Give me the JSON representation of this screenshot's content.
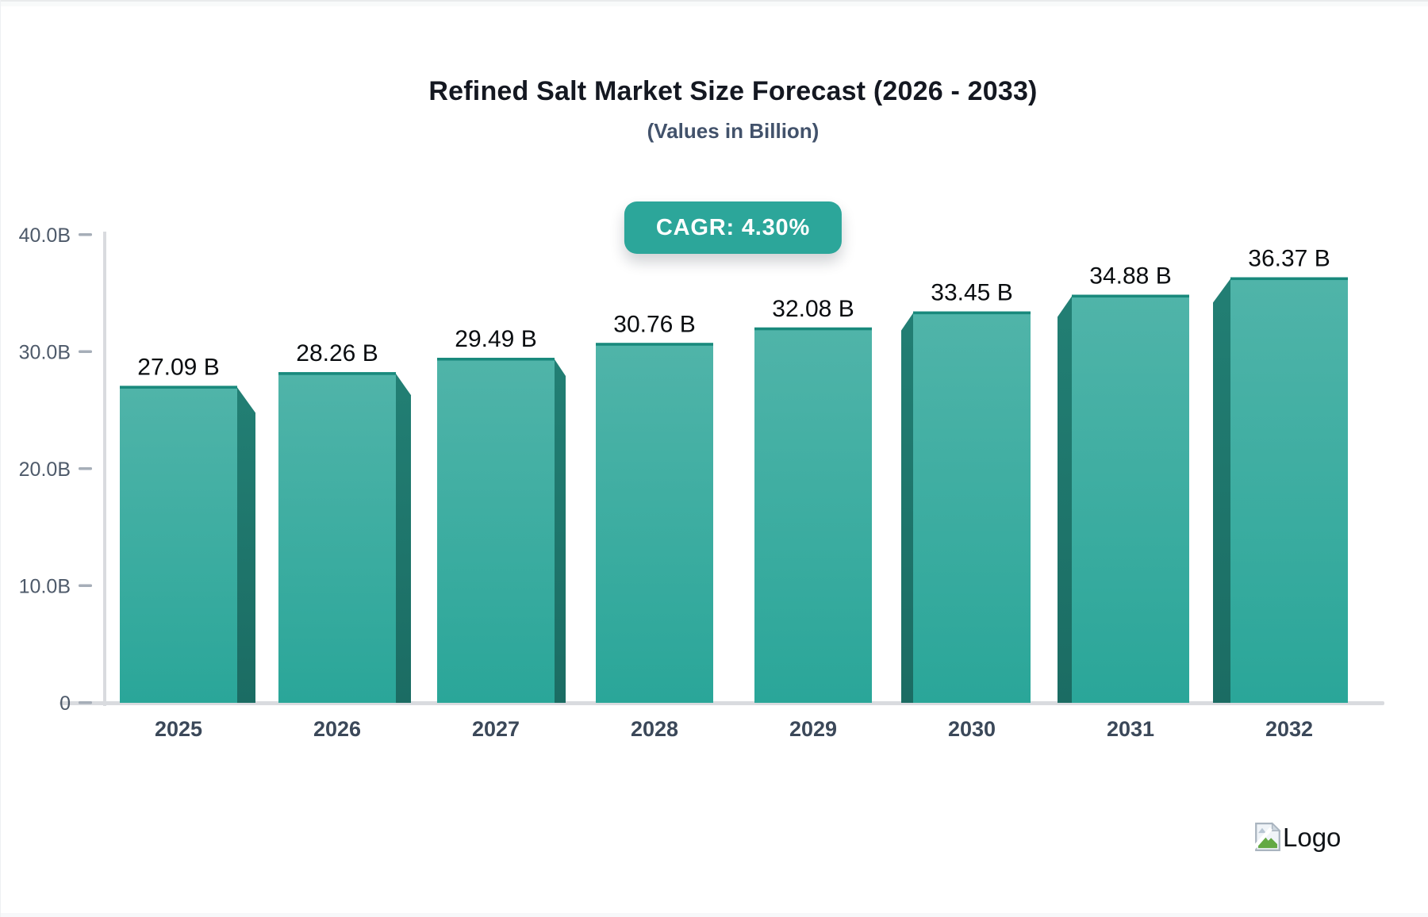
{
  "header": {
    "title": "Refined Salt Market Size Forecast (2026 - 2033)",
    "subtitle": "(Values in Billion)"
  },
  "badge": {
    "label": "CAGR: 4.30%"
  },
  "logo": {
    "text": "Logo",
    "icon": "broken-image-icon"
  },
  "chart_data": {
    "type": "bar",
    "title": "Refined Salt Market Size Forecast (2026 - 2033)",
    "subtitle": "(Values in Billion)",
    "annotation": "CAGR: 4.30%",
    "categories": [
      "2025",
      "2026",
      "2027",
      "2028",
      "2029",
      "2030",
      "2031",
      "2032"
    ],
    "values": [
      27.09,
      28.26,
      29.49,
      30.76,
      32.08,
      33.45,
      34.88,
      36.37
    ],
    "value_labels": [
      "27.09 B",
      "28.26 B",
      "29.49 B",
      "30.76 B",
      "32.08 B",
      "33.45 B",
      "34.88 B",
      "36.37 B"
    ],
    "unit": "Billion",
    "ylim": [
      0,
      40
    ],
    "yticks": [
      {
        "value": 40,
        "label": "40.0B"
      },
      {
        "value": 30,
        "label": "30.0B"
      },
      {
        "value": 20,
        "label": "20.0B"
      },
      {
        "value": 10,
        "label": "10.0B"
      },
      {
        "value": 0,
        "label": "0"
      }
    ],
    "grid": false,
    "legend": "none",
    "colors": {
      "bar_face_top": "#50b4a9",
      "bar_face_bottom": "#2aa699",
      "bar_side_top": "#227f74",
      "bar_side_bottom": "#1b6c63",
      "bar_top_edge": "#19897c",
      "badge_bg": "#2ca69a",
      "axis_line": "#d9dbdf",
      "tick_dash": "#a6aeb8",
      "y_label": "#4e5a6a",
      "x_label": "#3b4859",
      "value_label": "#0a0d10"
    },
    "style3d": {
      "side_widths": [
        23,
        19,
        14,
        0,
        0,
        15,
        18,
        22
      ],
      "side_dir": [
        "right",
        "right",
        "right",
        "none",
        "none",
        "left",
        "left",
        "left"
      ]
    }
  }
}
